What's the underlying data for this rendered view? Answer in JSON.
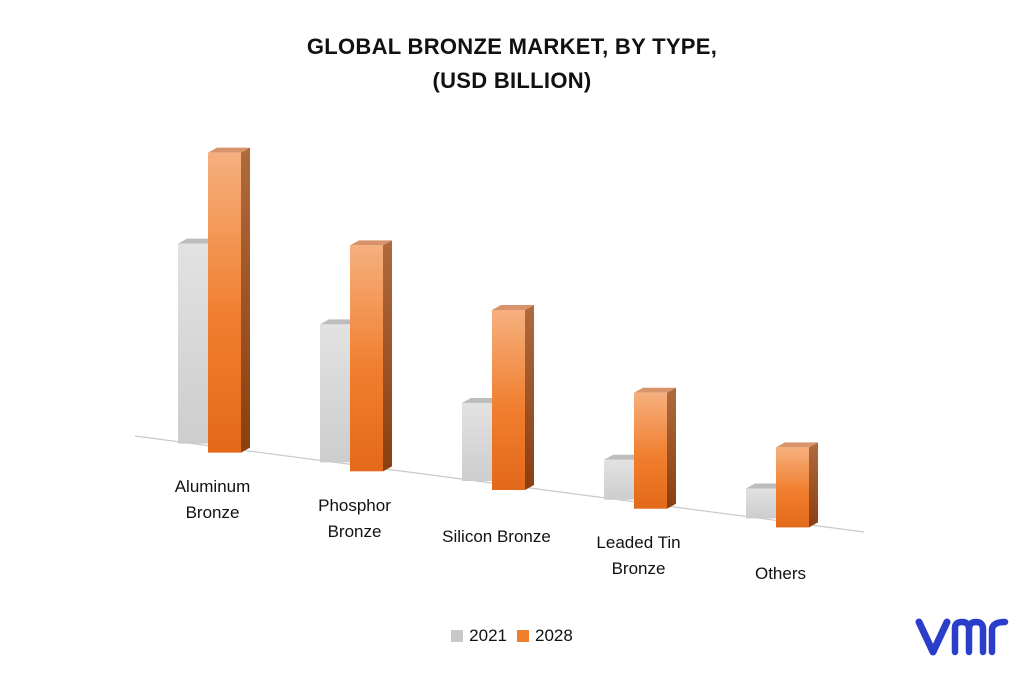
{
  "chart_data": {
    "type": "bar",
    "title_line1": "GLOBAL BRONZE MARKET, BY TYPE,",
    "title_line2": "(USD BILLION)",
    "categories": [
      {
        "line1": "Aluminum",
        "line2": "Bronze"
      },
      {
        "line1": "Phosphor",
        "line2": "Bronze"
      },
      {
        "line1": "Silicon Bronze",
        "line2": ""
      },
      {
        "line1": "Leaded Tin",
        "line2": "Bronze"
      },
      {
        "line1": "Others",
        "line2": ""
      }
    ],
    "series": [
      {
        "name": "2021",
        "values": [
          200,
          138,
          78,
          40,
          30
        ],
        "color": "#c8c8c8"
      },
      {
        "name": "2028",
        "values": [
          300,
          226,
          180,
          116,
          80
        ],
        "color": "#ef7d2c"
      }
    ],
    "ylim": [
      0,
      300
    ],
    "grid": false,
    "legend": "bottom-center",
    "style": "3d-columns"
  },
  "logo": {
    "name": "vmr-logo",
    "color": "#2a3ec9"
  }
}
